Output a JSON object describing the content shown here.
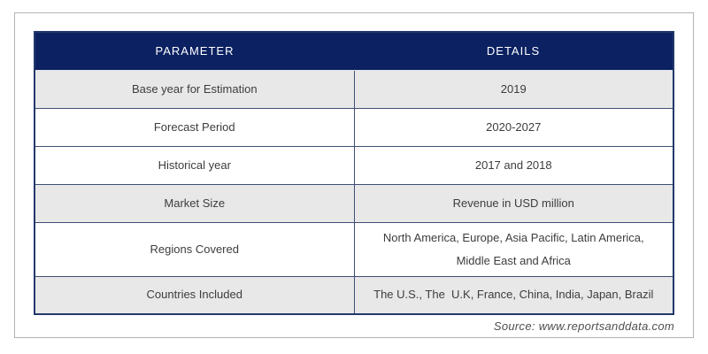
{
  "chart_data": {
    "type": "table",
    "columns": [
      "PARAMETER",
      "DETAILS"
    ],
    "rows": [
      [
        "Base year for Estimation",
        "2019"
      ],
      [
        "Forecast Period",
        "2020-2027"
      ],
      [
        "Historical year",
        "2017 and 2018"
      ],
      [
        "Market Size",
        "Revenue in USD million"
      ],
      [
        "Regions Covered",
        "North America, Europe, Asia Pacific, Latin America, Middle East and Africa"
      ],
      [
        "Countries Included",
        "The U.S., The  U.K, France, China, India, Japan, Brazil"
      ]
    ],
    "shaded_row_indices": [
      0,
      3,
      5
    ],
    "legend_position": "none",
    "grid": true
  },
  "source": "Source: www.reportsanddata.com",
  "colors": {
    "header_bg": "#0b2161",
    "header_text": "#ffffff",
    "row_shaded_bg": "#e8e8e8",
    "row_plain_bg": "#ffffff",
    "table_border": "#22386b",
    "cell_border": "#3f4e73",
    "cell_text": "#3d3d3d",
    "source_text": "#4f4f4f",
    "frame_border": "#b3b3b3"
  }
}
